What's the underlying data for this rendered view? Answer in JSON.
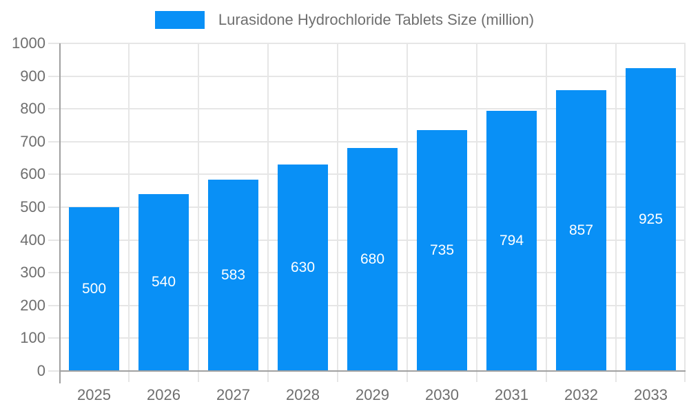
{
  "legend": {
    "label": "Lurasidone Hydrochloride Tablets Size (million)"
  },
  "chart_data": {
    "type": "bar",
    "title": "Lurasidone Hydrochloride Tablets Size (million)",
    "categories": [
      "2025",
      "2026",
      "2027",
      "2028",
      "2029",
      "2030",
      "2031",
      "2032",
      "2033"
    ],
    "values": [
      500,
      540,
      583,
      630,
      680,
      735,
      794,
      857,
      925
    ],
    "xlabel": "",
    "ylabel": "",
    "ylim": [
      0,
      1000
    ],
    "yticks": [
      0,
      100,
      200,
      300,
      400,
      500,
      600,
      700,
      800,
      900,
      1000
    ],
    "grid": true,
    "legend_position": "top-center",
    "value_labels": "inside-center",
    "colors": {
      "bar": "#0990f6",
      "bar_label": "#ffffff",
      "axis": "#a0a0a0",
      "grid": "#e6e6e6",
      "tick_text": "#6e6e6e",
      "legend_text": "#6f6f6f",
      "background": "#ffffff"
    }
  }
}
